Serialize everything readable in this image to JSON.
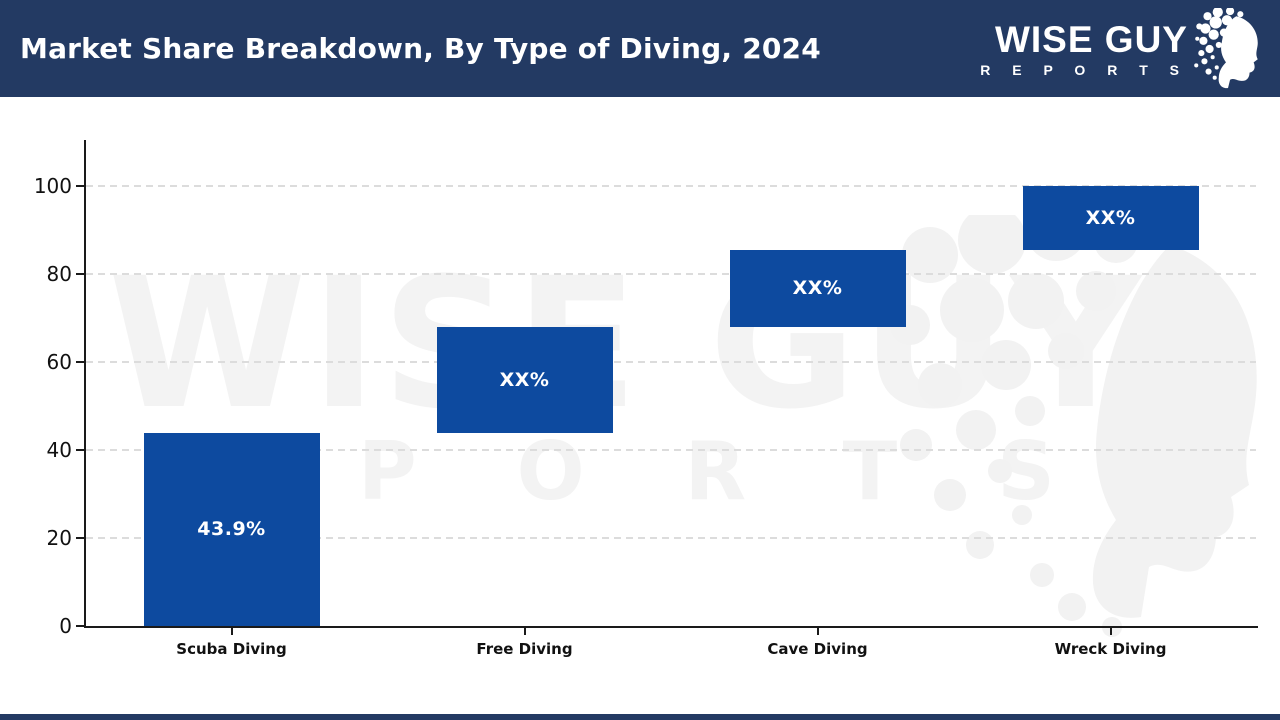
{
  "header": {
    "title": "Market Share Breakdown, By Type of Diving, 2024",
    "logo": {
      "name_top": "WISE GUY",
      "name_bottom": "R E P O R T S"
    }
  },
  "watermark": {
    "line1": "WISE GUY",
    "line2": "PORTS"
  },
  "chart_data": {
    "type": "bar",
    "variant": "waterfall",
    "title": "Market Share Breakdown, By Type of Diving, 2024",
    "categories": [
      "Scuba Diving",
      "Free Diving",
      "Cave Diving",
      "Wreck Diving"
    ],
    "segments": [
      {
        "category": "Scuba Diving",
        "start": 0,
        "end": 43.9,
        "label": "43.9%"
      },
      {
        "category": "Free Diving",
        "start": 43.9,
        "end": 68,
        "label": "XX%"
      },
      {
        "category": "Cave Diving",
        "start": 68,
        "end": 85.5,
        "label": "XX%"
      },
      {
        "category": "Wreck Diving",
        "start": 85.5,
        "end": 100,
        "label": "XX%"
      }
    ],
    "xlabel": "",
    "ylabel": "",
    "ylim": [
      0,
      100
    ],
    "yticks": [
      0,
      20,
      40,
      60,
      80,
      100
    ],
    "grid": "horizontal dashed",
    "legend": "none",
    "bar_color": "#0d4a9f"
  },
  "colors": {
    "header_bg": "#233a63",
    "footer_bg": "#233a63",
    "bar": "#0d4a9f",
    "axis": "#1a1a1a",
    "grid": "#dcdcdc",
    "watermark": "#f3f3f3",
    "title_text": "#ffffff",
    "bar_label_text": "#ffffff"
  }
}
